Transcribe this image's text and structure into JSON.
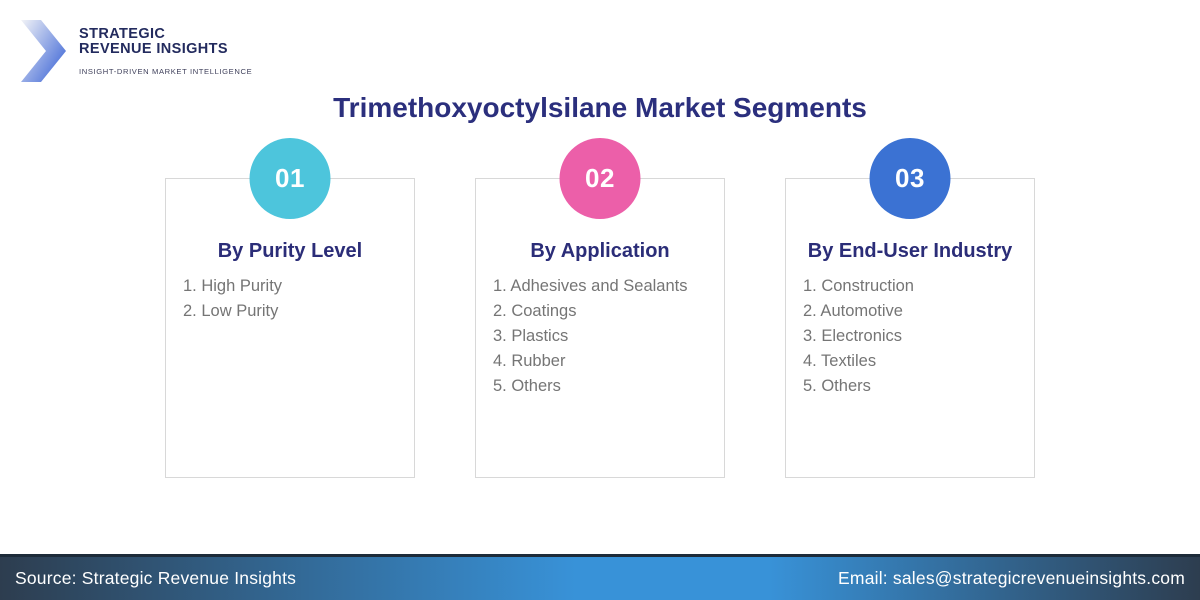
{
  "brand": {
    "icon": "chevron-arrow-icon",
    "name_line1": "STRATEGIC",
    "name_line2": "REVENUE INSIGHTS",
    "tagline": "INSIGHT-DRIVEN MARKET INTELLIGENCE"
  },
  "title": "Trimethoxyoctylsilane Market Segments",
  "cards": [
    {
      "number": "01",
      "accent_color": "#4dc5dc",
      "heading": "By Purity Level",
      "items": [
        "1. High Purity",
        "2. Low Purity"
      ]
    },
    {
      "number": "02",
      "accent_color": "#ec5fa9",
      "heading": "By Application",
      "items": [
        "1. Adhesives and Sealants",
        "2. Coatings",
        "3. Plastics",
        "4. Rubber",
        "5. Others"
      ]
    },
    {
      "number": "03",
      "accent_color": "#3b72d3",
      "heading": "By End-User Industry",
      "items": [
        "1. Construction",
        "2. Automotive",
        "3. Electronics",
        "4. Textiles",
        "5. Others"
      ]
    }
  ],
  "footer": {
    "source": "Source: Strategic Revenue Insights",
    "email": "Email: sales@strategicrevenueinsights.com"
  },
  "colors": {
    "title_navy": "#2b2f7d",
    "heading_navy": "#2b2d78",
    "list_gray": "#757575",
    "card_border": "#d8d8d8",
    "footer_gradient_edge": "#2d3d4f",
    "footer_gradient_mid": "#3892d8",
    "logo_navy": "#232b5e",
    "logo_gradient_start": "#f2f3f7",
    "logo_gradient_end": "#3e66d6"
  }
}
